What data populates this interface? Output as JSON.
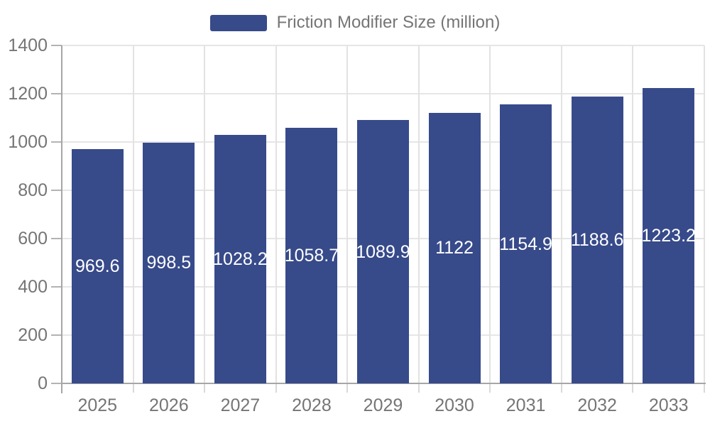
{
  "chart_data": {
    "type": "bar",
    "series_name": "Friction Modifier Size (million)",
    "categories": [
      "2025",
      "2026",
      "2027",
      "2028",
      "2029",
      "2030",
      "2031",
      "2032",
      "2033"
    ],
    "values": [
      969.6,
      998.5,
      1028.2,
      1058.7,
      1089.9,
      1122,
      1154.9,
      1188.6,
      1223.2
    ],
    "value_labels": [
      "969.6",
      "998.5",
      "1028.2",
      "1058.7",
      "1089.9",
      "1122",
      "1154.9",
      "1188.6",
      "1223.2"
    ],
    "title": "",
    "xlabel": "",
    "ylabel": "",
    "ylim": [
      0,
      1400
    ],
    "ytick_step": 200,
    "ytick_labels": [
      "0",
      "200",
      "400",
      "600",
      "800",
      "1000",
      "1200",
      "1400"
    ],
    "legend_position": "top",
    "grid": "on",
    "value_label_position": "inside-center"
  },
  "colors": {
    "bar": "#374a8a",
    "axis_text": "#757575",
    "legend_text": "#757575",
    "value_text": "#ffffff",
    "h_gridline": "#e6e6e6",
    "v_gridline": "#e2e2e2",
    "axis_line": "#a6a6a6",
    "y_tick": "#b3b3b3",
    "cat_tick": "#d9d9d9",
    "background": "#ffffff"
  }
}
